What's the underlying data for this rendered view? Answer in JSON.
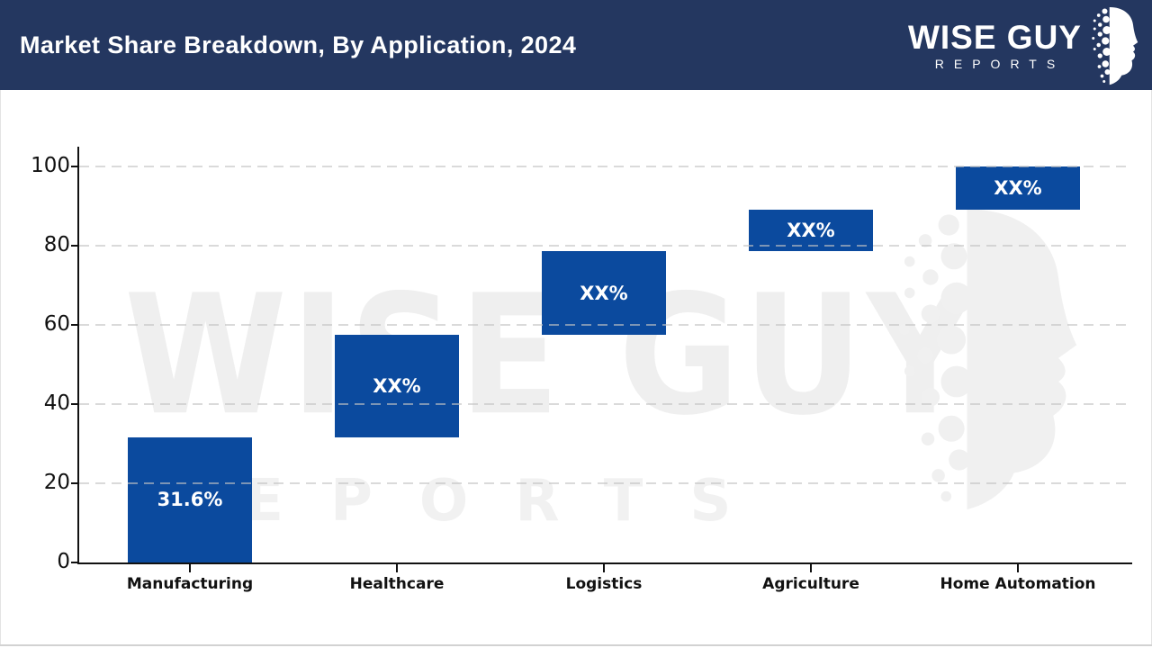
{
  "header": {
    "title": "Market Share Breakdown, By Application, 2024",
    "bg_color": "#243760",
    "logo": {
      "line1": "WISE GUY",
      "line2": "REPORTS"
    }
  },
  "watermark": {
    "line1": "WISE GUY",
    "line2": "REPORTS"
  },
  "chart_data": {
    "type": "bar",
    "subtype": "waterfall",
    "title": "Market Share Breakdown, By Application, 2024",
    "categories": [
      "Manufacturing",
      "Healthcare",
      "Logistics",
      "Agriculture",
      "Home Automation"
    ],
    "series": [
      {
        "name": "Market Share (%)",
        "start": [
          0,
          31.6,
          57.5,
          78.6,
          89.1
        ],
        "end": [
          31.6,
          57.5,
          78.6,
          89.1,
          100
        ]
      }
    ],
    "bar_labels": [
      "31.6%",
      "XX%",
      "XX%",
      "XX%",
      "XX%"
    ],
    "yticks": [
      0,
      20,
      40,
      60,
      80,
      100
    ],
    "ylim": [
      0,
      105
    ],
    "xlabel": "",
    "ylabel": "",
    "legend": "none",
    "grid": "horizontal-dashed",
    "colors": {
      "bar": "#0B4A9E",
      "bar_label": "#FFFFFF",
      "axis": "#111111",
      "grid": "#C9C9C9",
      "background": "#FFFFFF"
    }
  }
}
